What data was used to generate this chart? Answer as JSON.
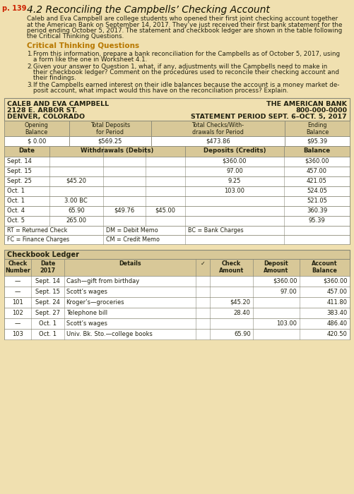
{
  "bg_color": "#f0e0b0",
  "page_label": "p. 139",
  "title": "4.2 Reconciling the Campbells’ Checking Account",
  "intro_lines": [
    "Caleb and Eva Campbell are college students who opened their first joint checking account together",
    "at the American Bank on September 14, 2017. They’ve just received their first bank statement for the",
    "period ending October 5, 2017. The statement and checkbook ledger are shown in the table following",
    "the Critical Thinking Questions."
  ],
  "ctq_title": "Critical Thinking Questions",
  "ctq_items": [
    [
      "From this information, prepare a bank reconciliation for the Campbells as of October 5, 2017, using",
      "a form like the one in Worksheet 4.1."
    ],
    [
      "Given your answer to Question 1, what, if any, adjustments will the Campbells need to make in",
      "their checkbook ledger? Comment on the procedures used to reconcile their checking account and",
      "their findings."
    ],
    [
      "If the Campbells earned interest on their idle balances because the account is a money market de-",
      "posit account, what impact would this have on the reconciliation process? Explain."
    ]
  ],
  "bank_left": [
    "CALEB AND EVA CAMPBELL",
    "2128 E. ARBOR ST.",
    "DENVER, COLORADO"
  ],
  "bank_right": [
    "THE AMERICAN BANK",
    "800-000-0000",
    "STATEMENT PERIOD SEPT. 6–OCT. 5, 2017"
  ],
  "sum_headers": [
    "Opening\nBalance",
    "Total Deposits\nfor Period",
    "Total Checks/With-\ndrawals for Period",
    "Ending\nBalance"
  ],
  "sum_values": [
    "$ 0.00",
    "$569.25",
    "$473.86",
    "$95.39"
  ],
  "transactions": [
    [
      "Sept. 14",
      "",
      "",
      "",
      "$360.00",
      "$360.00"
    ],
    [
      "Sept. 15",
      "",
      "",
      "",
      "97.00",
      "457.00"
    ],
    [
      "Sept. 25",
      "$45.20",
      "",
      "",
      "9.25",
      "421.05"
    ],
    [
      "Oct. 1",
      "",
      "",
      "",
      "103.00",
      "524.05"
    ],
    [
      "Oct. 1",
      "3.00 BC",
      "",
      "",
      "",
      "521.05"
    ],
    [
      "Oct. 4",
      "65.90",
      "$49.76",
      "$45.00",
      "",
      "360.39"
    ],
    [
      "Oct. 5",
      "265.00",
      "",
      "",
      "",
      "95.39"
    ]
  ],
  "legend": [
    [
      "RT = Returned Check",
      "DM = Debit Memo",
      "BC = Bank Charges",
      ""
    ],
    [
      "FC = Finance Charges",
      "CM = Credit Memo",
      "",
      ""
    ]
  ],
  "ledger_title": "Checkbook Ledger",
  "ledger_headers": [
    "Check\nNumber",
    "Date\n2017",
    "Details",
    "✓",
    "Check\nAmount",
    "Deposit\nAmount",
    "Account\nBalance"
  ],
  "ledger_rows": [
    [
      "—",
      "Sept. 14",
      "Cash—gift from birthday",
      "",
      "",
      "$360.00",
      "$360.00"
    ],
    [
      "—",
      "Sept. 15",
      "Scott’s wages",
      "",
      "",
      "97.00",
      "457.00"
    ],
    [
      "101",
      "Sept. 24",
      "Kroger’s—groceries",
      "",
      "$45.20",
      "",
      "411.80"
    ],
    [
      "102",
      "Sept. 27",
      "Telephone bill",
      "",
      "28.40",
      "",
      "383.40"
    ],
    [
      "—",
      "Oct. 1",
      "Scott’s wages",
      "",
      "",
      "103.00",
      "486.40"
    ],
    [
      "103",
      "Oct. 1",
      "Univ. Bk. Sto.—college books",
      "",
      "65.90",
      "",
      "420.50"
    ]
  ],
  "tan_header": "#d8c898",
  "white": "#ffffff",
  "light_tan": "#ede0c0",
  "border": "#888877",
  "text": "#222211",
  "red_label": "#cc2200",
  "gold_ctq": "#b87800"
}
